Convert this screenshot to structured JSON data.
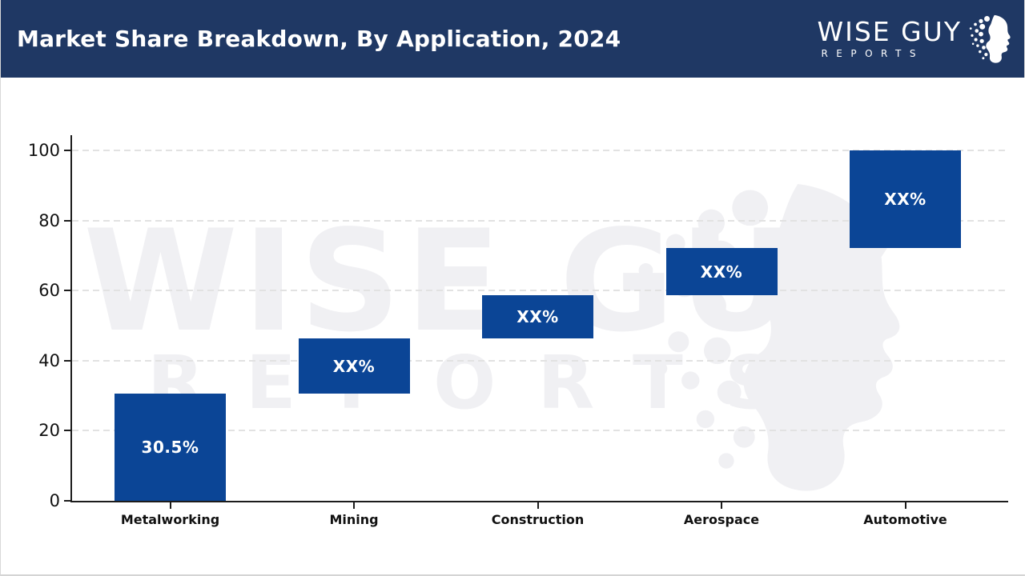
{
  "header": {
    "title": "Market Share Breakdown, By Application, 2024",
    "logo": {
      "line1": "WISE GUY",
      "line2": "REPORTS"
    }
  },
  "watermark": {
    "line1": "WISE GUY",
    "line2": "REPORTS"
  },
  "colors": {
    "header_bg": "#1F3864",
    "bar": "#0B4596",
    "grid": "#e2e2e2",
    "axis": "#1c1c1c",
    "watermark": "#f0f0f3",
    "on_bar_label": "#ffffff"
  },
  "chart_data": {
    "type": "bar",
    "subtype": "waterfall",
    "title": "Market Share Breakdown, By Application, 2024",
    "xlabel": "",
    "ylabel": "",
    "categories": [
      "Metalworking",
      "Mining",
      "Construction",
      "Aerospace",
      "Automotive"
    ],
    "segments": [
      {
        "category": "Metalworking",
        "start": 0,
        "end": 30.5,
        "value": 30.5,
        "label": "30.5%"
      },
      {
        "category": "Mining",
        "start": 30.5,
        "end": 46.3,
        "value": 15.8,
        "label": "XX%"
      },
      {
        "category": "Construction",
        "start": 46.3,
        "end": 58.6,
        "value": 12.3,
        "label": "XX%"
      },
      {
        "category": "Aerospace",
        "start": 58.6,
        "end": 72.1,
        "value": 13.5,
        "label": "XX%"
      },
      {
        "category": "Automotive",
        "start": 72.1,
        "end": 100,
        "value": 27.9,
        "label": "XX%"
      }
    ],
    "yticks": [
      0,
      20,
      40,
      60,
      80,
      100
    ],
    "ylim": [
      0,
      104
    ],
    "grid": "horizontal-dashed",
    "legend": "none"
  }
}
